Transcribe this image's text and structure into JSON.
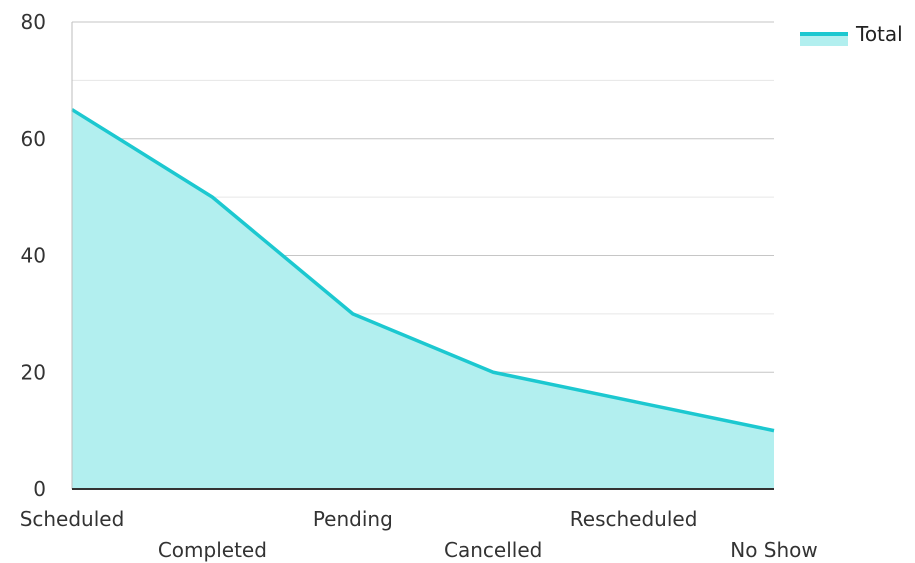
{
  "chart_data": {
    "type": "area",
    "title": "",
    "xlabel": "",
    "ylabel": "",
    "categories": [
      "Scheduled",
      "Completed",
      "Pending",
      "Cancelled",
      "Rescheduled",
      "No Show"
    ],
    "series": [
      {
        "name": "Total",
        "values": [
          65,
          50,
          30,
          20,
          15,
          10
        ]
      }
    ],
    "ylim": [
      0,
      80
    ],
    "yticks": [
      0,
      20,
      40,
      60,
      80
    ],
    "grid": true,
    "legend_position": "top-right",
    "colors": {
      "line": "#1cc8d0",
      "fill": "#b2efef",
      "grid": "#cfcfcf",
      "axis": "#333333"
    }
  }
}
